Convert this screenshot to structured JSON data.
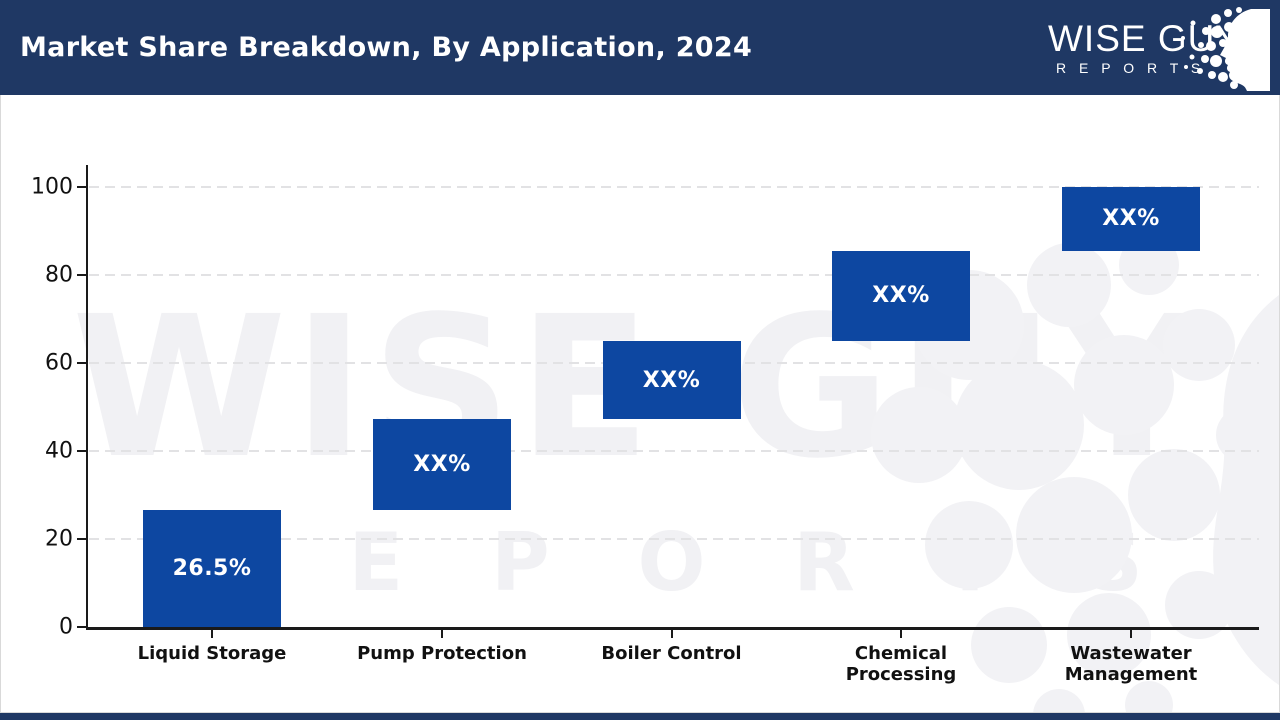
{
  "header": {
    "title": "Market Share Breakdown, By Application, 2024",
    "background": "#1f3864",
    "logo": {
      "line1": "WISE GUY",
      "line2": "R E P O R T S",
      "icon": "dotted-head-profile"
    }
  },
  "watermark": {
    "line1": "WISE GUY",
    "line2": "R E P O R T S"
  },
  "colors": {
    "header_navy": "#1f3864",
    "bar_blue": "#0d47a1",
    "bar_label": "#ffffff",
    "gridline": "#e2e2e4",
    "axis": "#1a1a1a",
    "watermark": "#f1f1f4"
  },
  "chart_data": {
    "type": "bar",
    "subtype": "waterfall",
    "title": "Market Share Breakdown, By Application, 2024",
    "xlabel": "",
    "ylabel": "",
    "ylim": [
      0,
      105
    ],
    "yticks": [
      0,
      20,
      40,
      60,
      80,
      100
    ],
    "grid": {
      "axis": "y",
      "style": "dashed",
      "color": "#e2e2e4"
    },
    "legend": null,
    "bar_color": "#0d47a1",
    "categories": [
      "Liquid Storage",
      "Pump Protection",
      "Boiler Control",
      "Chemical Processing",
      "Wastewater Management"
    ],
    "categories_lines": [
      [
        "Liquid Storage"
      ],
      [
        "Pump Protection"
      ],
      [
        "Boiler Control"
      ],
      [
        "Chemical",
        "Processing"
      ],
      [
        "Wastewater",
        "Management"
      ]
    ],
    "bars": [
      {
        "category": "Liquid Storage",
        "start": 0,
        "end": 26.5,
        "value": 26.5,
        "label": "26.5%"
      },
      {
        "category": "Pump Protection",
        "start": 26.5,
        "end": 47.2,
        "value": 20.7,
        "label": "XX%"
      },
      {
        "category": "Boiler Control",
        "start": 47.2,
        "end": 65.0,
        "value": 17.8,
        "label": "XX%"
      },
      {
        "category": "Chemical Processing",
        "start": 65.0,
        "end": 85.5,
        "value": 20.5,
        "label": "XX%"
      },
      {
        "category": "Wastewater Management",
        "start": 85.5,
        "end": 100.0,
        "value": 14.5,
        "label": "XX%"
      }
    ]
  }
}
